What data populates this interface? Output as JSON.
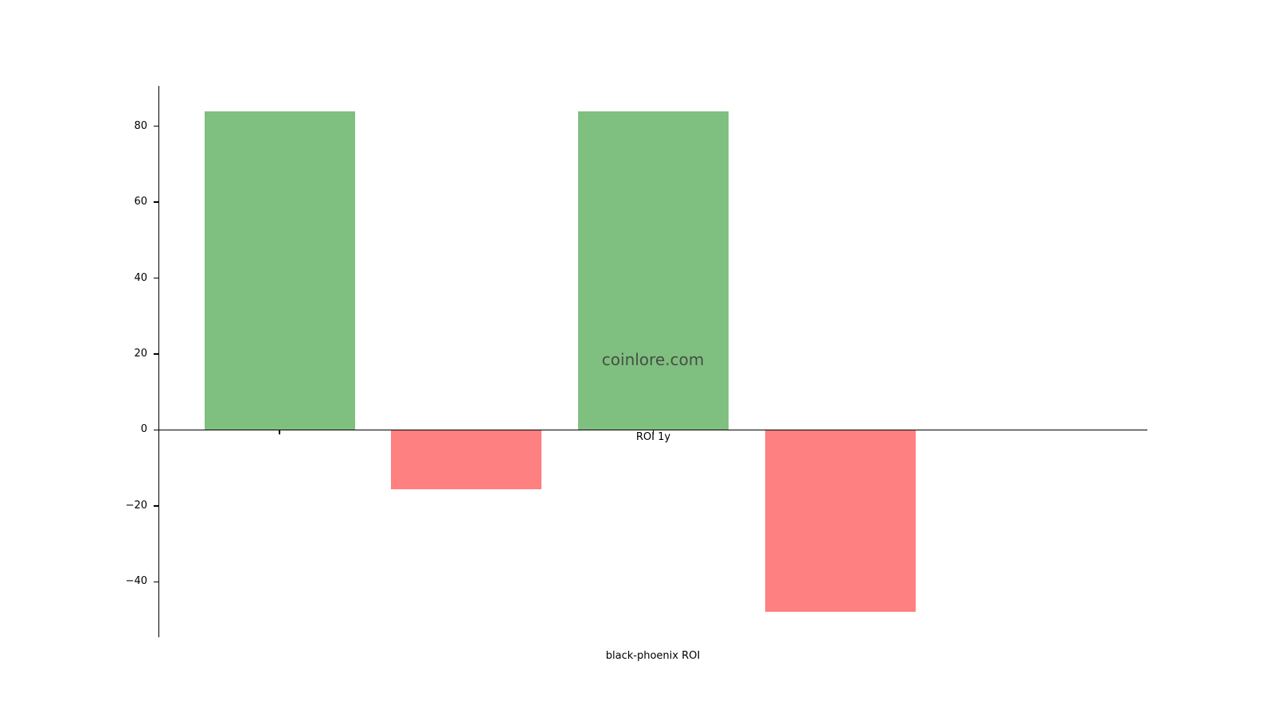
{
  "figure": {
    "background": "#ffffff"
  },
  "chart_data": {
    "type": "bar",
    "title": "",
    "xlabel": "black-phoenix ROI",
    "ylabel": "",
    "watermark": "coinlore.com",
    "values": [
      84,
      -15.7,
      84,
      -48
    ],
    "x_ticks": [
      {
        "index": 0,
        "label": ""
      },
      {
        "index": 2,
        "label": "ROI 1y"
      }
    ],
    "y_ticks": [
      80,
      60,
      40,
      20,
      0,
      -20,
      -40
    ],
    "ylim": [
      -54.6,
      90.6
    ],
    "grid": false,
    "legend": null,
    "colors": {
      "positive_bar": "#7fbf7f",
      "negative_bar": "#ff8080",
      "axis": "#000000",
      "tick_label": "#000000",
      "watermark": "#3c3c3c"
    }
  }
}
